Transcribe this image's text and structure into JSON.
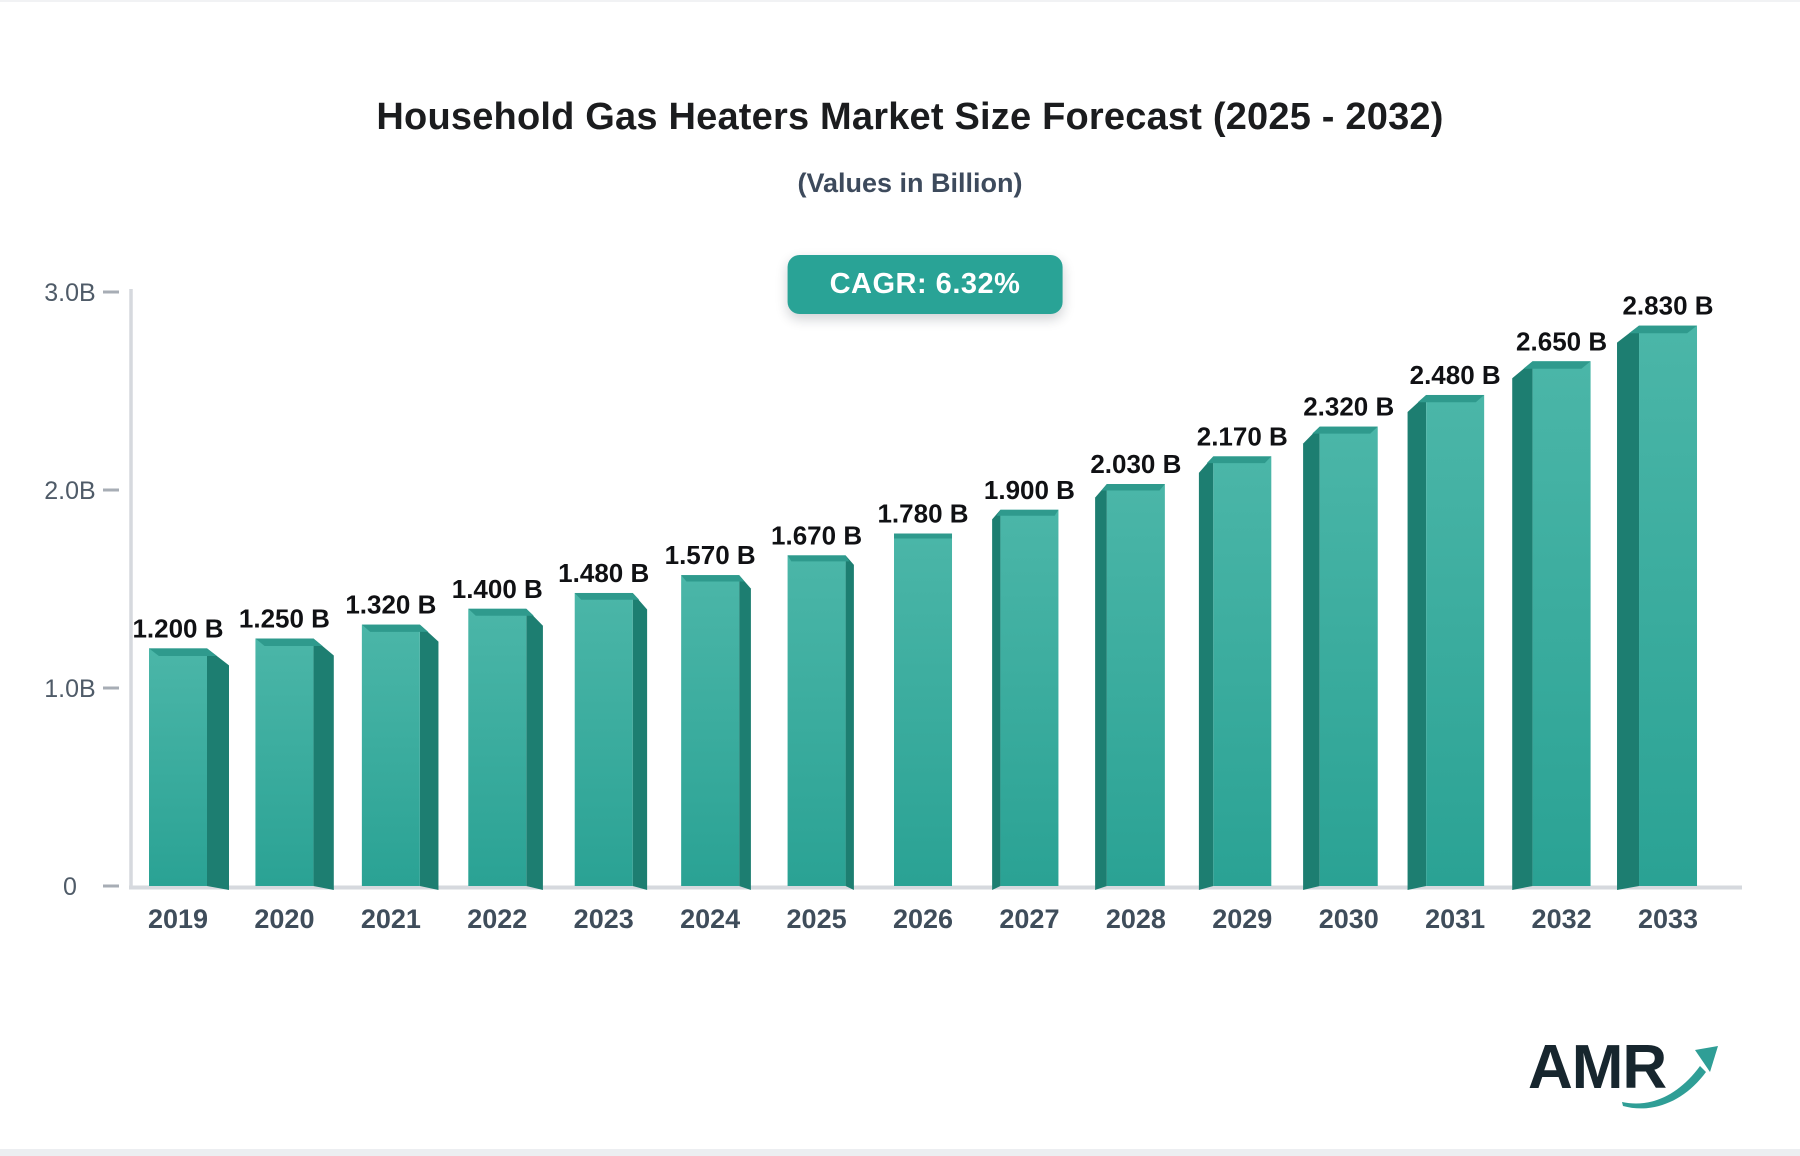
{
  "header": {
    "title": "Household Gas Heaters Market Size Forecast (2025 - 2032)",
    "subtitle": "(Values in Billion)",
    "cagr_badge": "CAGR: 6.32%"
  },
  "chart_data": {
    "type": "bar",
    "style": "3d-perspective-columns",
    "title": "Household Gas Heaters Market Size Forecast (2025 - 2032)",
    "subtitle": "(Values in Billion)",
    "annotation": "CAGR: 6.32%",
    "categories": [
      "2019",
      "2020",
      "2021",
      "2022",
      "2023",
      "2024",
      "2025",
      "2026",
      "2027",
      "2028",
      "2029",
      "2030",
      "2031",
      "2032",
      "2033"
    ],
    "values": [
      1.2,
      1.25,
      1.32,
      1.4,
      1.48,
      1.57,
      1.67,
      1.78,
      1.9,
      2.03,
      2.17,
      2.32,
      2.48,
      2.65,
      2.83
    ],
    "value_labels": [
      "1.200 B",
      "1.250 B",
      "1.320 B",
      "1.400 B",
      "1.480 B",
      "1.570 B",
      "1.670 B",
      "1.780 B",
      "1.900 B",
      "2.030 B",
      "2.170 B",
      "2.320 B",
      "2.480 B",
      "2.650 B",
      "2.830 B"
    ],
    "xlabel": "",
    "ylabel": "",
    "ylim": [
      0,
      3.0
    ],
    "y_ticks": [
      {
        "value": 0,
        "label": "0"
      },
      {
        "value": 1.0,
        "label": "1.0B"
      },
      {
        "value": 2.0,
        "label": "2.0B"
      },
      {
        "value": 3.0,
        "label": "3.0B"
      }
    ],
    "grid": false,
    "legend": "none",
    "colors": {
      "bar_front_top": "#4bb6a8",
      "bar_front_bottom": "#2aa294",
      "bar_side": "#1d7e71",
      "bar_top_face": "#2f9a8d",
      "axis_line": "#d6d9de",
      "tick_mark": "#a7adb5",
      "tick_label": "#4f5b68",
      "category_label": "#3f4d5b",
      "value_label": "#101114",
      "badge_background": "#29a396"
    }
  },
  "logo": {
    "text": "AMR",
    "arrow_color": "#2f9e96"
  }
}
